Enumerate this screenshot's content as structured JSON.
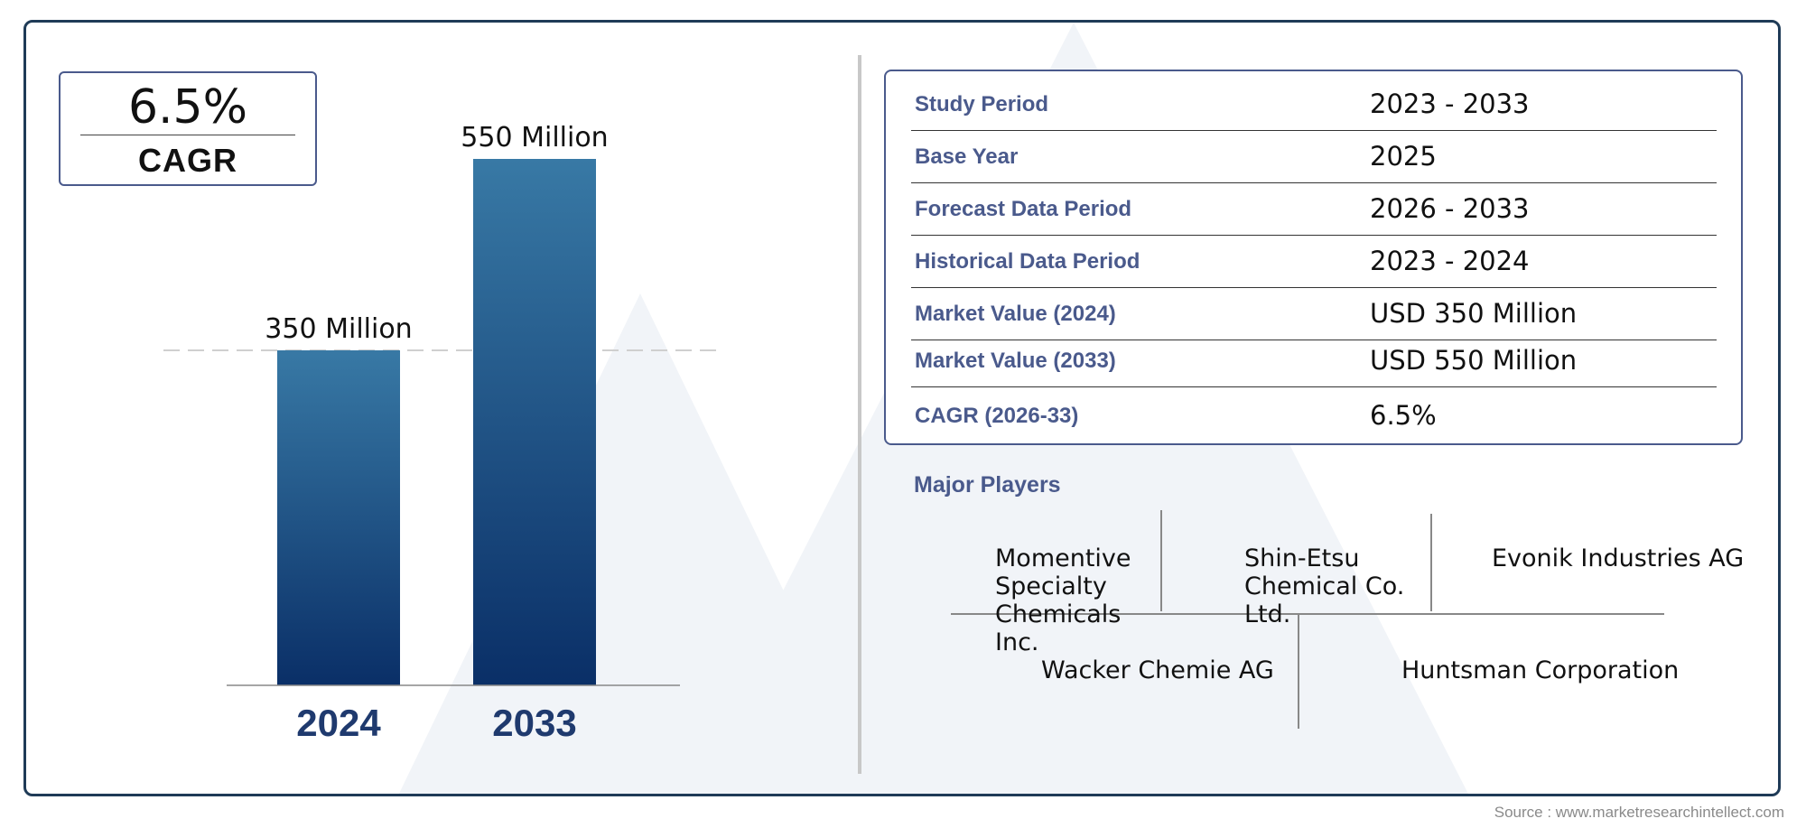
{
  "cagr_box": {
    "value": "6.5%",
    "label": "CAGR"
  },
  "chart_data": {
    "type": "bar",
    "categories": [
      "2024",
      "2033"
    ],
    "values": [
      350,
      550
    ],
    "value_labels": [
      "350 Million",
      "550 Million"
    ],
    "title": "",
    "xlabel": "",
    "ylabel": "",
    "ylim": [
      0,
      600
    ],
    "reference_line": 350,
    "colors": {
      "bar_top": "#3879a5",
      "bar_bottom": "#0a2f67",
      "category_label": "#1f3a6e"
    }
  },
  "info_table": {
    "rows": [
      {
        "label": "Study Period",
        "value": "2023 - 2033"
      },
      {
        "label": "Base Year",
        "value": "2025"
      },
      {
        "label": "Forecast Data Period",
        "value": "2026 - 2033"
      },
      {
        "label": "Historical Data Period",
        "value": "2023 - 2024"
      },
      {
        "label": "Market Value (2024)",
        "value": "USD 350 Million"
      },
      {
        "label": "Market Value (2033)",
        "value": "USD 550 Million"
      },
      {
        "label": "CAGR (2026-33)",
        "value": "6.5%"
      }
    ]
  },
  "players": {
    "title": "Major Players",
    "items": [
      "Momentive Specialty Chemicals Inc.",
      "Shin-Etsu Chemical Co. Ltd.",
      "Evonik Industries AG",
      "Wacker Chemie AG",
      "Huntsman Corporation"
    ]
  },
  "source": "Source : www.marketresearchintellect.com",
  "colors": {
    "frame": "#1f3b57",
    "accent": "#4a5a8c",
    "watermark": "#f1f4f8"
  }
}
